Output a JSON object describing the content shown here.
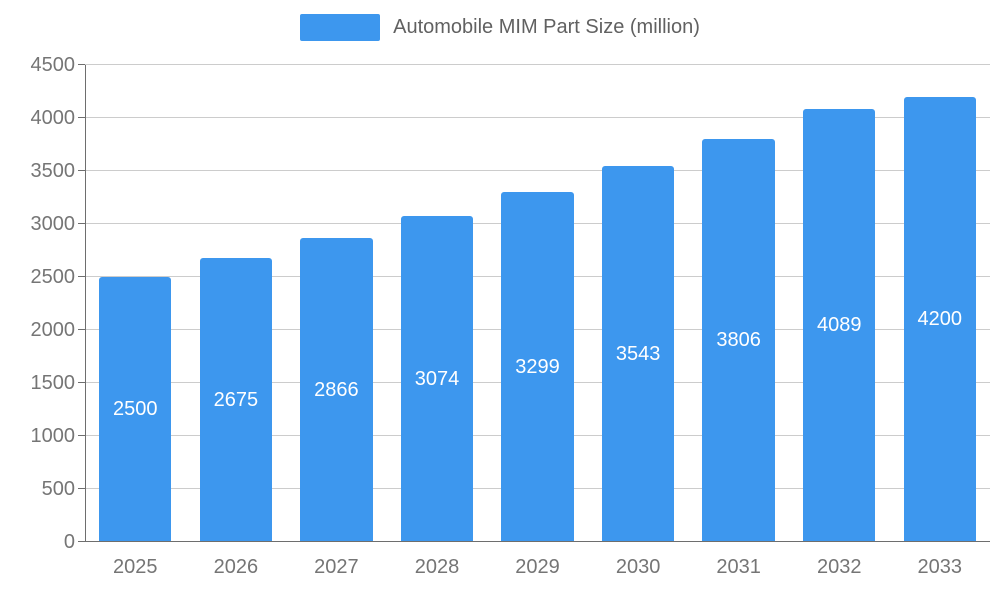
{
  "legend": {
    "label": "Automobile MIM Part Size (million)",
    "swatch_color": "#3d97ee"
  },
  "chart_data": {
    "type": "bar",
    "title": "Automobile MIM Part Size (million)",
    "categories": [
      "2025",
      "2026",
      "2027",
      "2028",
      "2029",
      "2030",
      "2031",
      "2032",
      "2033"
    ],
    "values": [
      2500,
      2675,
      2866,
      3074,
      3299,
      3543,
      3806,
      4089,
      4200
    ],
    "series_name": "Automobile MIM Part Size (million)",
    "xlabel": "",
    "ylabel": "",
    "ylim": [
      0,
      4500
    ],
    "ytick_step": 500,
    "yticks": [
      0,
      500,
      1000,
      1500,
      2000,
      2500,
      3000,
      3500,
      4000,
      4500
    ],
    "grid": true,
    "legend_position": "top",
    "value_labels": "inside-center",
    "bar_color": "#3d97ee",
    "value_label_color": "#ffffff",
    "axis_label_color": "#757575",
    "gridline_color": "#cccccc",
    "axis_line_color": "#6e6e6e"
  }
}
